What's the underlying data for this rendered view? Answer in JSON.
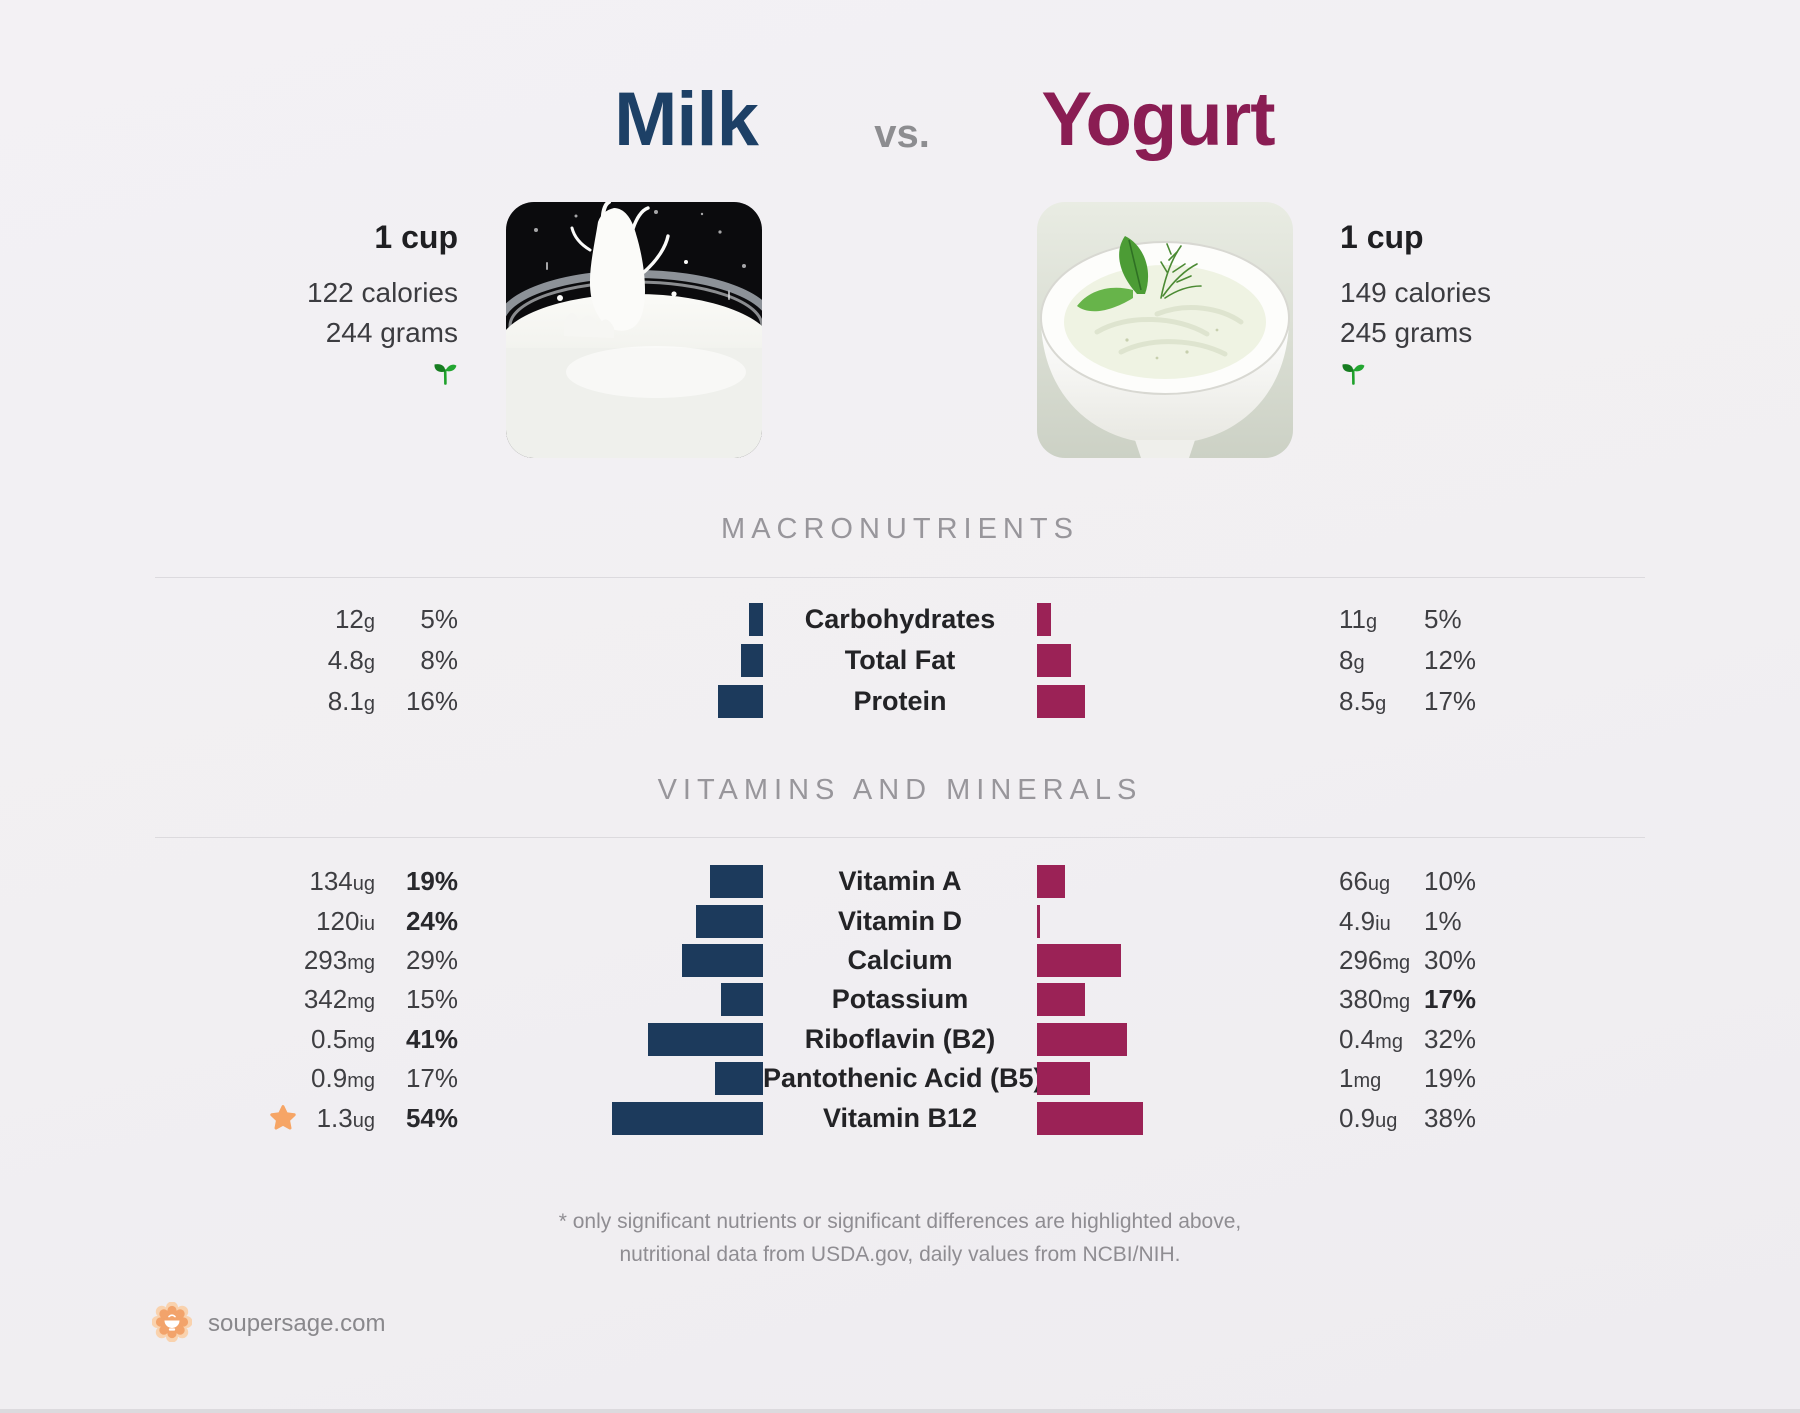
{
  "title": {
    "left": "Milk",
    "vs": "vs.",
    "right": "Yogurt"
  },
  "servings": {
    "milk": {
      "amount": "1 cup",
      "calories": "122 calories",
      "grams": "244 grams"
    },
    "yogurt": {
      "amount": "1 cup",
      "calories": "149 calories",
      "grams": "245 grams"
    }
  },
  "sections": {
    "macros_title": "MACRONUTRIENTS",
    "vitamins_title": "VITAMINS AND MINERALS"
  },
  "macros": [
    {
      "label": "Carbohydrates",
      "milk": {
        "num": "12",
        "unit": "g",
        "pct": "5%",
        "pct_val": 5,
        "bold": false
      },
      "yogurt": {
        "num": "11",
        "unit": "g",
        "pct": "5%",
        "pct_val": 5,
        "bold": false
      }
    },
    {
      "label": "Total Fat",
      "milk": {
        "num": "4.8",
        "unit": "g",
        "pct": "8%",
        "pct_val": 8,
        "bold": false
      },
      "yogurt": {
        "num": "8",
        "unit": "g",
        "pct": "12%",
        "pct_val": 12,
        "bold": false
      }
    },
    {
      "label": "Protein",
      "milk": {
        "num": "8.1",
        "unit": "g",
        "pct": "16%",
        "pct_val": 16,
        "bold": false
      },
      "yogurt": {
        "num": "8.5",
        "unit": "g",
        "pct": "17%",
        "pct_val": 17,
        "bold": false
      }
    }
  ],
  "vitamins": [
    {
      "label": "Vitamin A",
      "milk": {
        "num": "134",
        "unit": "ug",
        "pct": "19%",
        "pct_val": 19,
        "bold": true
      },
      "yogurt": {
        "num": "66",
        "unit": "ug",
        "pct": "10%",
        "pct_val": 10,
        "bold": false
      }
    },
    {
      "label": "Vitamin D",
      "milk": {
        "num": "120",
        "unit": "iu",
        "pct": "24%",
        "pct_val": 24,
        "bold": true
      },
      "yogurt": {
        "num": "4.9",
        "unit": "iu",
        "pct": "1%",
        "pct_val": 1,
        "bold": false
      }
    },
    {
      "label": "Calcium",
      "milk": {
        "num": "293",
        "unit": "mg",
        "pct": "29%",
        "pct_val": 29,
        "bold": false
      },
      "yogurt": {
        "num": "296",
        "unit": "mg",
        "pct": "30%",
        "pct_val": 30,
        "bold": false
      }
    },
    {
      "label": "Potassium",
      "milk": {
        "num": "342",
        "unit": "mg",
        "pct": "15%",
        "pct_val": 15,
        "bold": false
      },
      "yogurt": {
        "num": "380",
        "unit": "mg",
        "pct": "17%",
        "pct_val": 17,
        "bold": true
      }
    },
    {
      "label": "Riboflavin (B2)",
      "milk": {
        "num": "0.5",
        "unit": "mg",
        "pct": "41%",
        "pct_val": 41,
        "bold": true
      },
      "yogurt": {
        "num": "0.4",
        "unit": "mg",
        "pct": "32%",
        "pct_val": 32,
        "bold": false
      }
    },
    {
      "label": "Pantothenic Acid (B5)",
      "milk": {
        "num": "0.9",
        "unit": "mg",
        "pct": "17%",
        "pct_val": 17,
        "bold": false
      },
      "yogurt": {
        "num": "1",
        "unit": "mg",
        "pct": "19%",
        "pct_val": 19,
        "bold": false
      }
    },
    {
      "label": "Vitamin B12",
      "milk": {
        "num": "1.3",
        "unit": "ug",
        "pct": "54%",
        "pct_val": 54,
        "bold": true,
        "starred": true
      },
      "yogurt": {
        "num": "0.9",
        "unit": "ug",
        "pct": "38%",
        "pct_val": 38,
        "bold": false
      }
    }
  ],
  "footnote": {
    "line1": "* only significant nutrients or significant differences are highlighted above,",
    "line2": "nutritional data from USDA.gov, daily values from NCBI/NIH."
  },
  "footer": {
    "site": "soupersage.com"
  },
  "icons": {
    "seedling": "seedling-icon",
    "star": "star-icon",
    "logo": "soupersage-logo-icon"
  },
  "colors": {
    "milk_title": "#1d4066",
    "yogurt_title": "#8a1d53",
    "milk_bar": "#1c3a5c",
    "yogurt_bar": "#9b2256",
    "star_orange": "#f6a566",
    "seedling_green": "#1fa12b",
    "logo_orange": "#f2a36b",
    "background": "#f1eff2"
  },
  "chart_data": [
    {
      "type": "bar",
      "title": "MACRONUTRIENTS",
      "orientation": "horizontal-mirrored",
      "categories": [
        "Carbohydrates",
        "Total Fat",
        "Protein"
      ],
      "series": [
        {
          "name": "Milk",
          "values": [
            5,
            8,
            16
          ],
          "amounts": [
            "12g",
            "4.8g",
            "8.1g"
          ],
          "color": "#1c3a5c"
        },
        {
          "name": "Yogurt",
          "values": [
            5,
            12,
            17
          ],
          "amounts": [
            "11g",
            "8g",
            "8.5g"
          ],
          "color": "#9b2256"
        }
      ],
      "unit": "% daily value",
      "xlim": [
        0,
        60
      ],
      "grid": false,
      "legend": "none"
    },
    {
      "type": "bar",
      "title": "VITAMINS AND MINERALS",
      "orientation": "horizontal-mirrored",
      "categories": [
        "Vitamin A",
        "Vitamin D",
        "Calcium",
        "Potassium",
        "Riboflavin (B2)",
        "Pantothenic Acid (B5)",
        "Vitamin B12"
      ],
      "series": [
        {
          "name": "Milk",
          "values": [
            19,
            24,
            29,
            15,
            41,
            17,
            54
          ],
          "amounts": [
            "134ug",
            "120iu",
            "293mg",
            "342mg",
            "0.5mg",
            "0.9mg",
            "1.3ug"
          ],
          "color": "#1c3a5c",
          "highlighted": [
            true,
            true,
            false,
            false,
            true,
            false,
            true
          ],
          "starred_category": "Vitamin B12"
        },
        {
          "name": "Yogurt",
          "values": [
            10,
            1,
            30,
            17,
            32,
            19,
            38
          ],
          "amounts": [
            "66ug",
            "4.9iu",
            "296mg",
            "380mg",
            "0.4mg",
            "1mg",
            "0.9ug"
          ],
          "color": "#9b2256",
          "highlighted": [
            false,
            false,
            false,
            true,
            false,
            false,
            false
          ]
        }
      ],
      "unit": "% daily value",
      "xlim": [
        0,
        60
      ],
      "grid": false,
      "legend": "none"
    }
  ]
}
